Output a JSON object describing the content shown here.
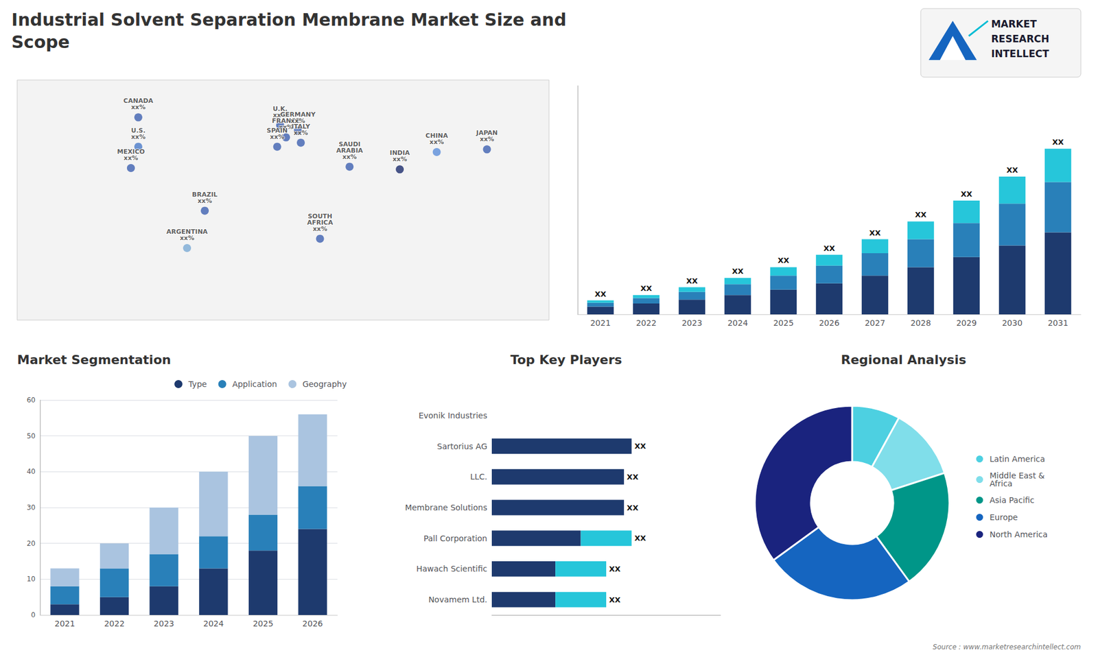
{
  "chart_data": [
    {
      "type": "map",
      "categories": [
        "CANADA\nxx%",
        "U.S.\nxx%",
        "MEXICO\nxx%",
        "BRAZIL\nxx%",
        "ARGENTINA\nxx%",
        "U.K.\nxx%",
        "FRANCE\nxx%",
        "SPAIN\nxx%",
        "GERMANY\nxx%",
        "ITALY\nxx%",
        "SAUDI\nARABIA\nxx%",
        "SOUTH\nAFRICA\nxx%",
        "CHINA\nxx%",
        "INDIA\nxx%",
        "JAPAN\nxx%"
      ],
      "x": [
        -98,
        -98,
        -103,
        -53,
        -65,
        -2,
        2,
        -4,
        10,
        12,
        45,
        25,
        104,
        79,
        138
      ],
      "y": [
        62,
        40,
        24,
        -8,
        -36,
        56,
        47,
        40,
        52,
        43,
        25,
        -29,
        36,
        23,
        38
      ],
      "colors": [
        "#3d60b0",
        "#4a7ac9",
        "#3d60b0",
        "#3d60b0",
        "#7aaad4",
        "#3d60b0",
        "#3d60b0",
        "#3d60b0",
        "#3d60b0",
        "#3d60b0",
        "#3d60b0",
        "#3d60b0",
        "#5b8dd9",
        "#1a2a6c",
        "#3d60b0"
      ],
      "xlim": [
        -180,
        180
      ],
      "ylim": [
        -90,
        90
      ],
      "tick_labels": false,
      "grid": false
    },
    {
      "type": "bar",
      "title": "Industrial Solvent Separation Membrane Market Size and\nScope",
      "annotations": [
        "MARKET",
        "RESEARCH",
        "INTELLECT"
      ],
      "categories": [
        "2021",
        "2022",
        "2023",
        "2024",
        "2025",
        "2026",
        "2027",
        "2028",
        "2029",
        "2030",
        "2031"
      ],
      "stacked": true,
      "series": [
        {
          "color": "#1e3a6e",
          "values": [
            1.0,
            1.4,
            1.9,
            2.5,
            3.2,
            4.0,
            5.0,
            6.1,
            7.4,
            8.9,
            10.6
          ]
        },
        {
          "color": "#2980b9",
          "values": [
            0.5,
            0.7,
            1.0,
            1.4,
            1.8,
            2.3,
            2.9,
            3.6,
            4.4,
            5.4,
            6.5
          ]
        },
        {
          "color": "#26c6da",
          "values": [
            0.3,
            0.4,
            0.6,
            0.8,
            1.1,
            1.4,
            1.8,
            2.3,
            2.9,
            3.5,
            4.3
          ],
          "value_labels": [
            "XX",
            "XX",
            "XX",
            "XX",
            "XX",
            "XX",
            "XX",
            "XX",
            "XX",
            "XX",
            "XX"
          ]
        }
      ],
      "ylim": [
        0,
        29.532
      ],
      "tick_labels": "x",
      "grid": false,
      "data_labels": true
    },
    {
      "type": "bar",
      "title": "Market Segmentation",
      "categories": [
        "2021",
        "2022",
        "2023",
        "2024",
        "2025",
        "2026"
      ],
      "stacked": true,
      "series": [
        {
          "name": "Type",
          "color": "#1e3a6e",
          "values": [
            3,
            5,
            8,
            13,
            18,
            24
          ]
        },
        {
          "name": "Application",
          "color": "#2980b9",
          "values": [
            5,
            8,
            9,
            9,
            10,
            12
          ]
        },
        {
          "name": "Geography",
          "color": "#aac4e0",
          "values": [
            5,
            7,
            13,
            18,
            22,
            20
          ]
        }
      ],
      "ylim": [
        0,
        60
      ],
      "yticks": [
        0,
        10,
        20,
        30,
        40,
        50,
        60
      ],
      "grid": true,
      "legend": "upper right"
    },
    {
      "type": "bar",
      "title": "Top Key Players",
      "orientation": "horizontal",
      "stacked": true,
      "categories": [
        "Evonik Industries",
        "Sartorius AG",
        "LLC.",
        "Membrane Solutions",
        "Pall Corporation",
        "Hawach Scientific",
        "Novamem Ltd."
      ],
      "series": [
        {
          "color": "#1e3a6e",
          "values": [
            0,
            5.5,
            5.2,
            5.2,
            3.5,
            2.5,
            2.5
          ]
        },
        {
          "color": "#26c6da",
          "values": [
            0,
            0,
            0,
            0,
            2.0,
            2.0,
            2.0
          ],
          "value_labels": [
            null,
            "XX",
            "XX",
            "XX",
            "XX",
            "XX",
            "XX"
          ]
        }
      ],
      "xlim": [
        0,
        9
      ],
      "tick_labels": "y",
      "grid": false,
      "data_labels": true
    },
    {
      "type": "pie",
      "title": "Regional Analysis",
      "annotations": [
        "Source : www.marketresearchintellect.com"
      ],
      "categories": [
        "Latin America",
        "Middle East &\nAfrica",
        "Asia Pacific",
        "Europe",
        "North America"
      ],
      "values": [
        8,
        12,
        20,
        25,
        35
      ],
      "colors": [
        "#4dd0e1",
        "#80deea",
        "#009688",
        "#1565c0",
        "#1a237e"
      ],
      "legend": "right",
      "data_labels": false
    }
  ]
}
